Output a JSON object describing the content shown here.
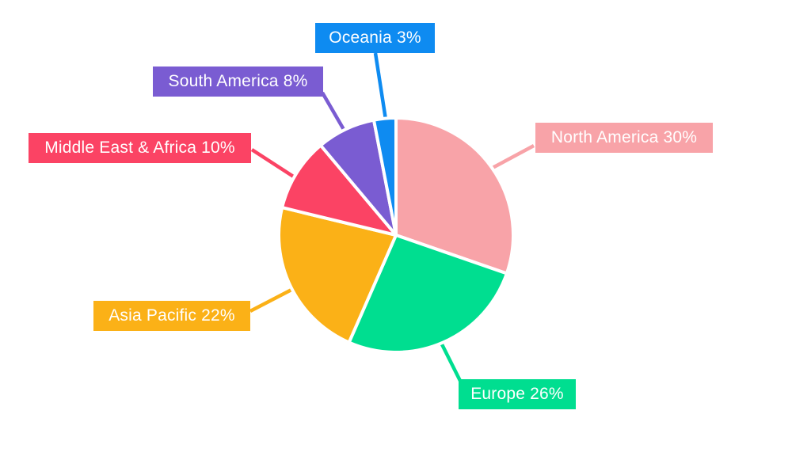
{
  "chart_data": {
    "type": "pie",
    "title": "",
    "background": "#FFFFFF",
    "start_angle_deg": 0,
    "direction": "clockwise",
    "legend_position": "none",
    "labels_style": "callout-boxes-with-leader-lines",
    "label_text_color": "#FFFFFF",
    "slice_border_color": "#FFFFFF",
    "categories": [
      "North America",
      "Europe",
      "Asia Pacific",
      "Middle East & Africa",
      "South America",
      "Oceania"
    ],
    "values": [
      30,
      26,
      22,
      10,
      8,
      3
    ],
    "slices": [
      {
        "label": "North America",
        "value_pct": 30,
        "display": "North America 30%",
        "color": "#F8A3A8"
      },
      {
        "label": "Europe",
        "value_pct": 26,
        "display": "Europe 26%",
        "color": "#00DE90"
      },
      {
        "label": "Asia Pacific",
        "value_pct": 22,
        "display": "Asia Pacific 22%",
        "color": "#FBB117"
      },
      {
        "label": "Middle East & Africa",
        "value_pct": 10,
        "display": "Middle East & Africa 10%",
        "color": "#FB4364"
      },
      {
        "label": "South America",
        "value_pct": 8,
        "display": "South America 8%",
        "color": "#7A5CD2"
      },
      {
        "label": "Oceania",
        "value_pct": 3,
        "display": "Oceania 3%",
        "color": "#0E8BF1"
      }
    ]
  }
}
